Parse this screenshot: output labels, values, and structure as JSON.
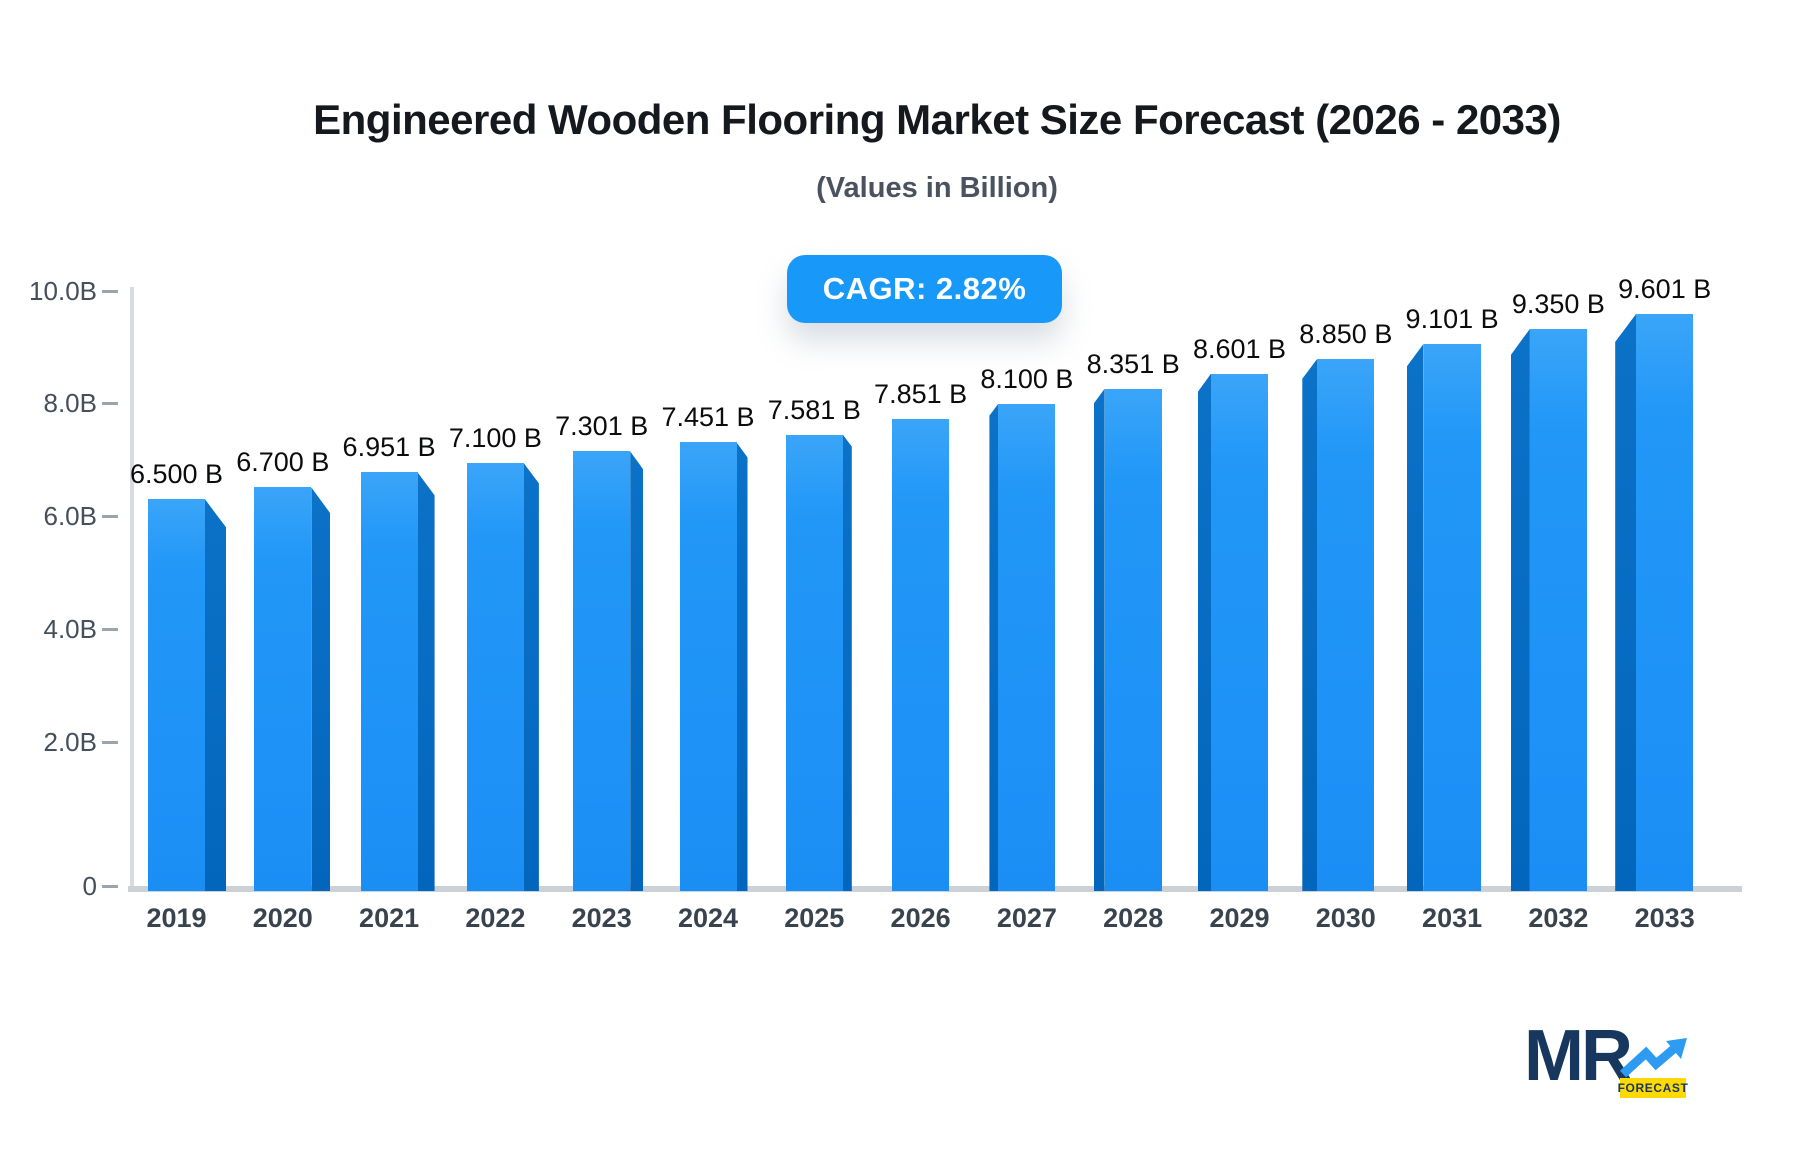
{
  "title": "Engineered Wooden Flooring Market Size Forecast (2026 - 2033)",
  "subtitle": "(Values in Billion)",
  "badge": {
    "label": "CAGR: 2.82%"
  },
  "chart_data": {
    "type": "bar",
    "title": "Engineered Wooden Flooring Market Size Forecast (2026 - 2033)",
    "subtitle": "(Values in Billion)",
    "cagr_label": "CAGR: 2.82%",
    "categories": [
      "2019",
      "2020",
      "2021",
      "2022",
      "2023",
      "2024",
      "2025",
      "2026",
      "2027",
      "2028",
      "2029",
      "2030",
      "2031",
      "2032",
      "2033"
    ],
    "values": [
      6.5,
      6.7,
      6.951,
      7.1,
      7.301,
      7.451,
      7.581,
      7.851,
      8.1,
      8.351,
      8.601,
      8.85,
      9.101,
      9.35,
      9.601
    ],
    "value_labels": [
      "6.500 B",
      "6.700 B",
      "6.951 B",
      "7.100 B",
      "7.301 B",
      "7.451 B",
      "7.581 B",
      "7.851 B",
      "8.100 B",
      "8.351 B",
      "8.601 B",
      "8.850 B",
      "9.101 B",
      "9.350 B",
      "9.601 B"
    ],
    "xlabel": "",
    "ylabel": "",
    "ylim": [
      0,
      10
    ],
    "yticks": [
      {
        "value": 10,
        "label": "10.0B"
      },
      {
        "value": 8,
        "label": "8.0B"
      },
      {
        "value": 6,
        "label": "6.0B"
      },
      {
        "value": 4,
        "label": "4.0B"
      },
      {
        "value": 2,
        "label": "2.0B"
      },
      {
        "value": 0,
        "label": "0"
      }
    ],
    "grid": false,
    "legend": "none",
    "bar_style": "3d",
    "colors": {
      "bar_face": "#2196f7",
      "bar_face_light": "#3aa5f9",
      "bar_side": "#0569c0",
      "axis_line": "#d8dbe0",
      "baseline": "#ccd1d8",
      "tick": "#9aa4af",
      "tick_label": "#444f5b",
      "category_label": "#39434e",
      "value_label": "#0b0c0e"
    }
  },
  "logo": {
    "mr": "MR",
    "forecast": "FORECAST",
    "navy": "#17375e",
    "yellow": "#ffd903",
    "arrow_blue": "#2d9bf2"
  },
  "colors": {
    "background": "#ffffff",
    "badge_bg": "#1899fa",
    "badge_text": "#ffffff",
    "title": "#15181d",
    "subtitle": "#49525e"
  }
}
